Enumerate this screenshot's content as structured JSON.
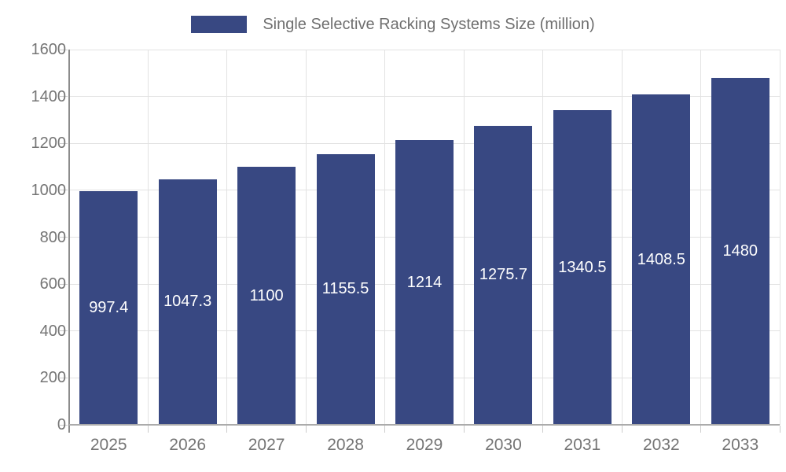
{
  "chart_data": {
    "type": "bar",
    "title": "",
    "legend": "Single Selective Racking Systems Size (million)",
    "legend_position": "top-center",
    "categories": [
      "2025",
      "2026",
      "2027",
      "2028",
      "2029",
      "2030",
      "2031",
      "2032",
      "2033"
    ],
    "values": [
      997.4,
      1047.3,
      1100,
      1155.5,
      1214,
      1275.7,
      1340.5,
      1408.5,
      1480
    ],
    "xlabel": "",
    "ylabel": "",
    "ylim": [
      0,
      1600
    ],
    "yticks": [
      0,
      200,
      400,
      600,
      800,
      1000,
      1200,
      1400,
      1600
    ],
    "grid": true,
    "value_labels_inside_bars": true
  },
  "colors": {
    "bar": "#384882",
    "legend_text": "#6f6f6f",
    "axis_text": "#757575",
    "gridline": "#e2e2e2",
    "x_axis_line": "#ababab",
    "y_axis_line": "#8c8c8c",
    "tick": "#cccccc",
    "bar_label": "#ffffff"
  }
}
